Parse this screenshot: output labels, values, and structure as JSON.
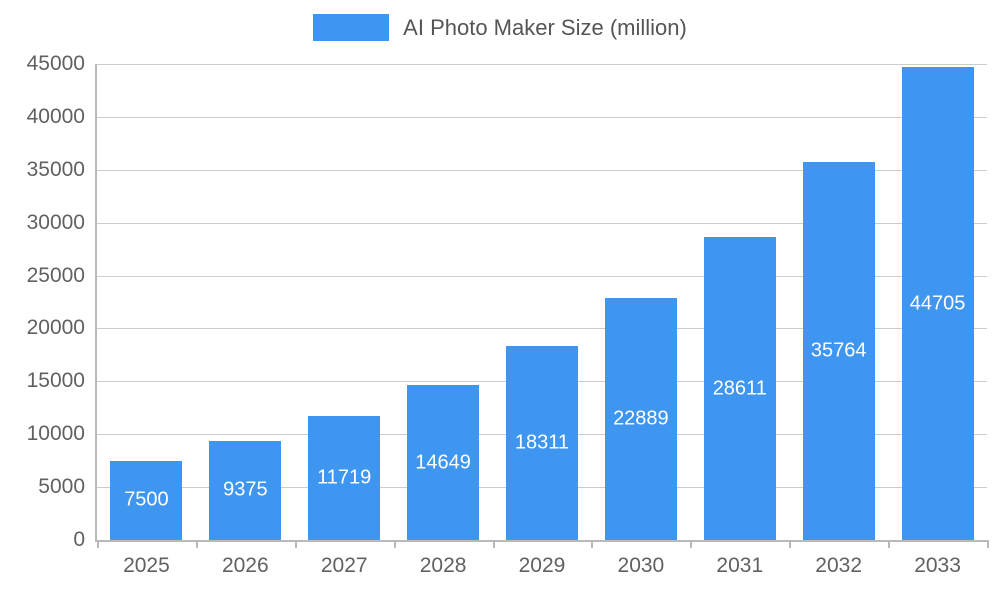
{
  "legend": {
    "label": "AI Photo Maker Size (million)",
    "swatch_color": "#3E96F0"
  },
  "chart_data": {
    "type": "bar",
    "title": "AI Photo Maker Size (million)",
    "categories": [
      "2025",
      "2026",
      "2027",
      "2028",
      "2029",
      "2030",
      "2031",
      "2032",
      "2033"
    ],
    "values": [
      7500,
      9375,
      11719,
      14649,
      18311,
      22889,
      28611,
      35764,
      44705
    ],
    "xlabel": "",
    "ylabel": "",
    "ylim": [
      0,
      45000
    ],
    "ytick_step": 5000,
    "grid": true,
    "legend_position": "top",
    "bar_color": "#3E96F0",
    "bar_label_position": "inside-center",
    "bar_label_color": "#ffffff",
    "axis_text_color": "#616161",
    "grid_color": "#cccccc"
  }
}
